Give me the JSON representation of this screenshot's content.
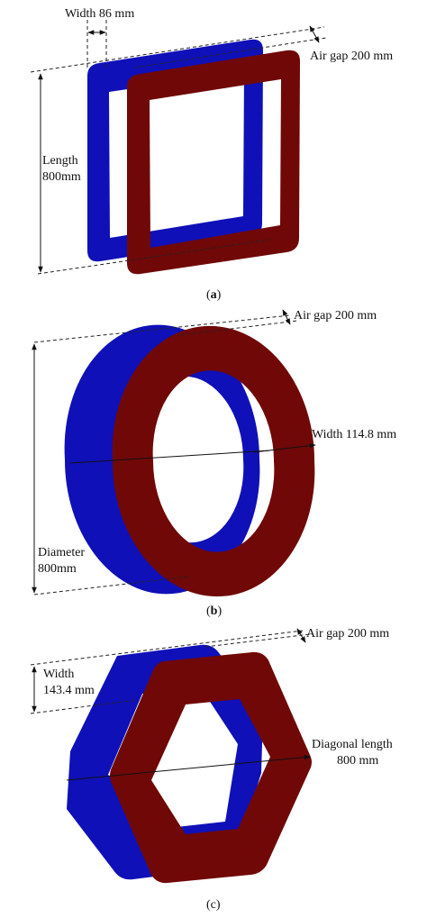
{
  "figure": {
    "colors": {
      "primary_coil": "#1010b8",
      "secondary_coil": "#700808",
      "background": "#ffffff"
    },
    "panel_a": {
      "shape": "square coil",
      "width_label": "Width 86 mm",
      "air_gap_label": "Air gap 200 mm",
      "length_label_line1": "Length",
      "length_label_line2": "800mm",
      "caption_open": "(",
      "caption_letter": "a",
      "caption_close": ")"
    },
    "panel_b": {
      "shape": "circular coil",
      "air_gap_label": "Air gap 200 mm",
      "width_label": "Width 114.8 mm",
      "diameter_label_line1": "Diameter",
      "diameter_label_line2": "800mm",
      "caption_open": "(",
      "caption_letter": "b",
      "caption_close": ")"
    },
    "panel_c": {
      "shape": "hexagonal coil",
      "air_gap_label": "Air gap 200 mm",
      "width_label_line1": "Width",
      "width_label_line2": "143.4 mm",
      "diagonal_label_line1": "Diagonal length",
      "diagonal_label_line2": "800 mm",
      "caption": "(c)"
    }
  }
}
